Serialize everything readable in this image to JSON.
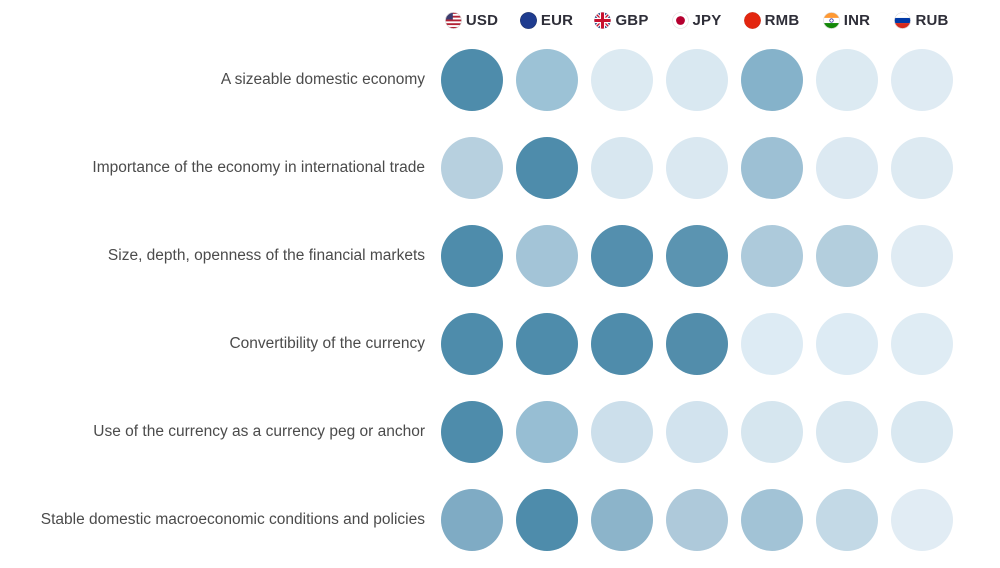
{
  "chart_data": {
    "type": "heatmap",
    "title": "",
    "legend_position": "none",
    "grid": false,
    "palette": {
      "strongest": "#4e8cab",
      "weakest": "#e1ecf4"
    },
    "columns": [
      {
        "code": "USD",
        "flag": "us"
      },
      {
        "code": "EUR",
        "flag": "eu"
      },
      {
        "code": "GBP",
        "flag": "gb"
      },
      {
        "code": "JPY",
        "flag": "jp"
      },
      {
        "code": "RMB",
        "flag": "cn"
      },
      {
        "code": "INR",
        "flag": "in"
      },
      {
        "code": "RUB",
        "flag": "ru"
      }
    ],
    "rows": [
      "A sizeable domestic economy",
      "Importance of the economy in international trade",
      "Size, depth, openness of the financial markets",
      "Convertibility of the currency",
      "Use of the currency as a currency peg or anchor",
      "Stable domestic macroeconomic conditions and policies"
    ],
    "cell_colors": [
      [
        "#4e8cab",
        "#9cc2d6",
        "#dceaf2",
        "#d9e8f1",
        "#85b2ca",
        "#dceaf2",
        "#dfebf3"
      ],
      [
        "#b7d0df",
        "#4e8cab",
        "#d8e7f0",
        "#dae8f1",
        "#9dc0d4",
        "#dce9f2",
        "#ddeaf2"
      ],
      [
        "#4e8cab",
        "#a3c4d7",
        "#548fae",
        "#5b94b1",
        "#adcadb",
        "#b3cedd",
        "#dfebf3"
      ],
      [
        "#4e8cab",
        "#4e8cab",
        "#4f8cab",
        "#528dab",
        "#ddebf4",
        "#ddebf4",
        "#dfecf4"
      ],
      [
        "#4e8cab",
        "#97bed3",
        "#ccdfeb",
        "#d2e3ee",
        "#d6e6ef",
        "#d8e7f0",
        "#d9e8f1"
      ],
      [
        "#7fabc4",
        "#4e8cab",
        "#8cb4ca",
        "#aec9da",
        "#a2c3d6",
        "#c3d9e6",
        "#e1ecf4"
      ]
    ],
    "intensity": [
      [
        1.0,
        0.58,
        0.12,
        0.13,
        0.7,
        0.12,
        0.1
      ],
      [
        0.4,
        1.0,
        0.14,
        0.13,
        0.57,
        0.12,
        0.12
      ],
      [
        1.0,
        0.5,
        0.95,
        0.9,
        0.45,
        0.42,
        0.1
      ],
      [
        1.0,
        1.0,
        1.0,
        0.98,
        0.1,
        0.1,
        0.09
      ],
      [
        1.0,
        0.6,
        0.25,
        0.2,
        0.16,
        0.14,
        0.13
      ],
      [
        0.75,
        1.0,
        0.68,
        0.45,
        0.5,
        0.3,
        0.08
      ]
    ]
  }
}
